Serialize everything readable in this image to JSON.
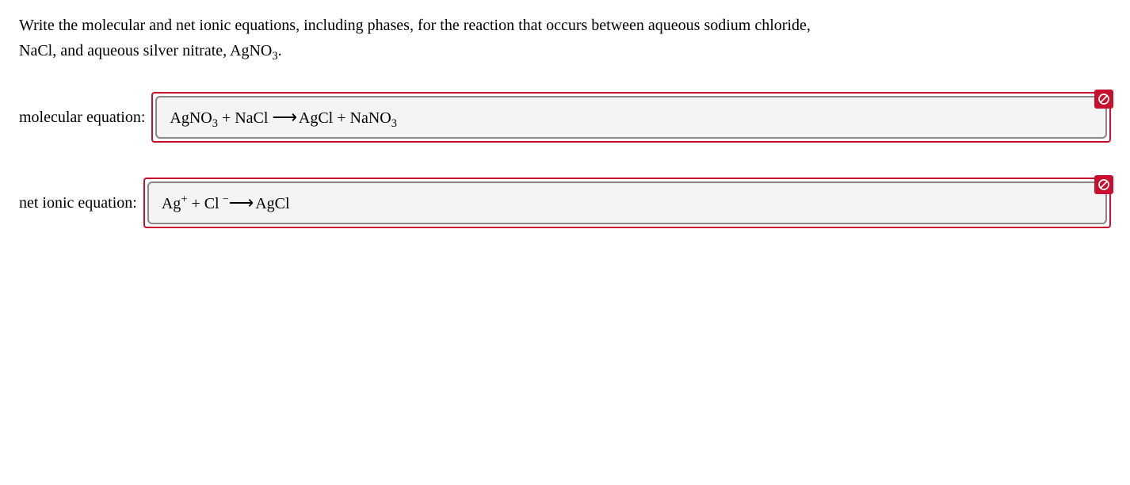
{
  "question": {
    "line1": "Write the molecular and net ionic equations, including phases, for the reaction that occurs between aqueous sodium chloride,",
    "line2_prefix": "NaCl, and aqueous silver nitrate, AgNO",
    "line2_sub": "3",
    "line2_suffix": "."
  },
  "rows": [
    {
      "label": "molecular equation:",
      "answer_html": "AgNO<sub>3</sub> + NaCl <span class='arrow'>⟶</span> AgCl + NaNO<sub>3</sub>",
      "incorrect": true
    },
    {
      "label": "net ionic equation:",
      "answer_html": "Ag<sup>+</sup> + Cl&thinsp;<sup>−</sup><span class='arrow'>⟶</span> AgCl",
      "incorrect": true
    }
  ],
  "colors": {
    "error": "#c8102e",
    "box_border": "#888888",
    "box_bg": "#f4f4f4"
  }
}
